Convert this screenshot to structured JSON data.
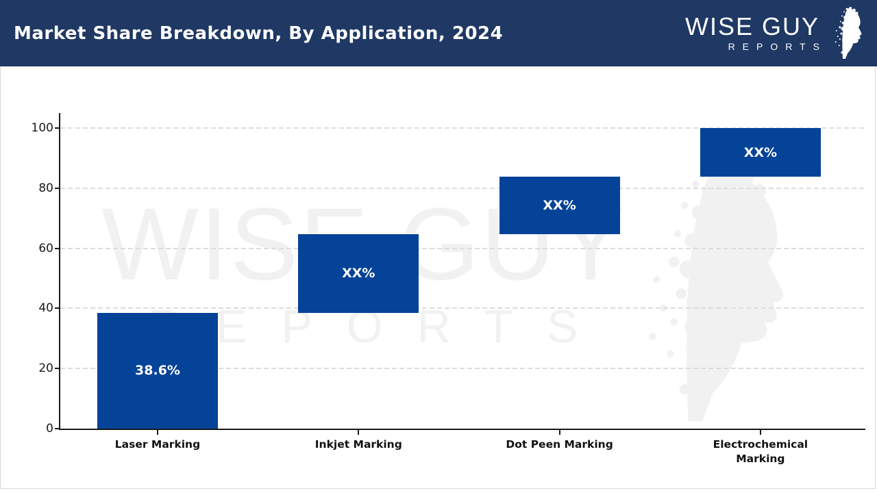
{
  "header": {
    "title": "Market Share Breakdown, By Application, 2024",
    "bg_color": "#1f3864",
    "logo": {
      "line1": "WISE GUY",
      "line2": "REPORTS"
    }
  },
  "watermark": {
    "line1": "WISE GUY",
    "line2": "REPORTS"
  },
  "chart_data": {
    "type": "bar",
    "subtype": "waterfall-floating-segments",
    "title": "Market Share Breakdown, By Application, 2024",
    "categories": [
      "Laser Marking",
      "Inkjet Marking",
      "Dot Peen Marking",
      "Electrochemical Marking"
    ],
    "bars": [
      {
        "category": "Laser Marking",
        "start": 0,
        "end": 38.6,
        "label": "38.6%"
      },
      {
        "category": "Inkjet Marking",
        "start": 38.6,
        "end": 64.6,
        "label": "XX%"
      },
      {
        "category": "Dot Peen Marking",
        "start": 64.6,
        "end": 83.8,
        "label": "XX%"
      },
      {
        "category": "Electrochemical Marking",
        "start": 83.8,
        "end": 100,
        "label": "XX%"
      }
    ],
    "bar_color": "#054399",
    "bar_label_color": "#ffffff",
    "xlabel": "",
    "ylabel": "",
    "ylim": [
      0,
      100
    ],
    "yticks": [
      0,
      20,
      40,
      60,
      80,
      100
    ],
    "grid": {
      "axis": "y",
      "style": "dashed",
      "color": "#dcdcdc"
    },
    "legend": "none"
  }
}
